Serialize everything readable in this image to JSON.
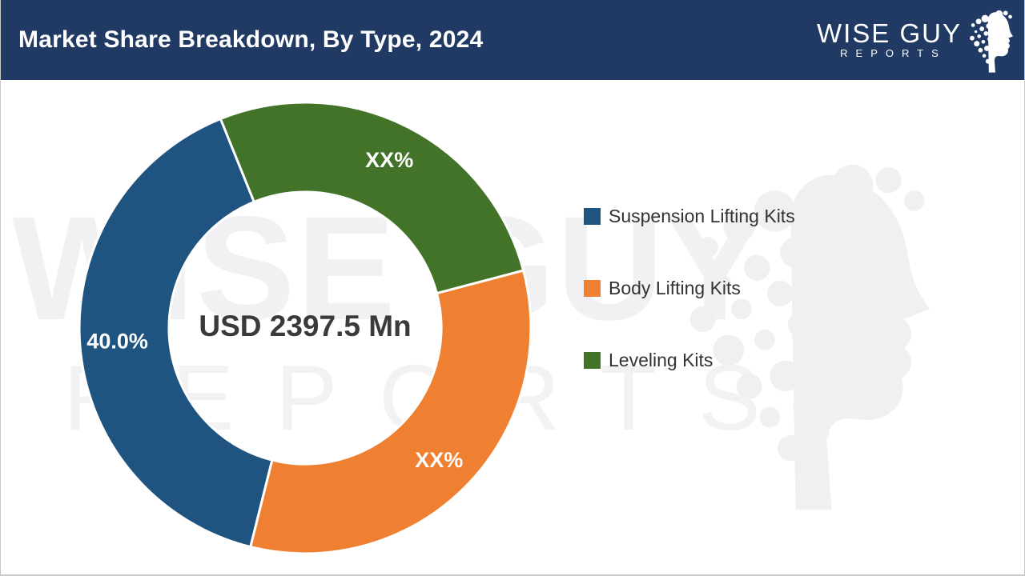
{
  "header": {
    "title": "Market Share Breakdown, By Type, 2024",
    "logo": {
      "name": "WISE GUY",
      "subtext": "REPORTS"
    }
  },
  "watermark": {
    "line1": "WISE GUY",
    "line2": "REPORTS"
  },
  "chart_data": {
    "type": "pie",
    "subtype": "donut",
    "title": "Market Share Breakdown, By Type, 2024",
    "center_label": "USD 2397.5 Mn",
    "start_angle_deg": 112,
    "direction": "counterclockwise",
    "legend_position": "right",
    "segments": [
      {
        "name": "Suspension Lifting Kits",
        "color": "#1F5480",
        "value_pct": 40.0,
        "display_label": "40.0%"
      },
      {
        "name": "Body Lifting Kits",
        "color": "#EF7F31",
        "value_pct": 33.0,
        "display_label": "XX%"
      },
      {
        "name": "Leveling Kits",
        "color": "#427329",
        "value_pct": 27.0,
        "display_label": "XX%"
      }
    ],
    "colors": {
      "header_bg": "#213A63",
      "center_text": "#3A3A3A",
      "legend_text": "#333333",
      "watermark": "#F1F1F4"
    }
  }
}
